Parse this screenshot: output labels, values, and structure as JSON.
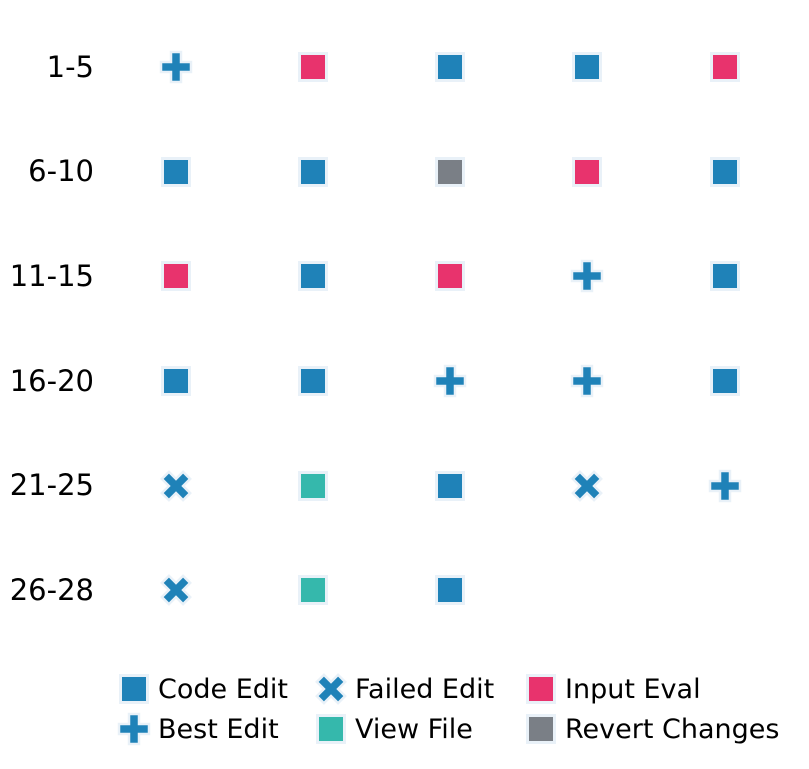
{
  "chart_data": {
    "type": "scatter",
    "title": "",
    "xlabel": "",
    "ylabel": "",
    "background": "#ffffff",
    "text_color": "#000000",
    "marker_edge_color": "#e9f1f8",
    "grid_on": false,
    "legend_position": "bottom",
    "row_labels": [
      "1-5",
      "6-10",
      "11-15",
      "16-20",
      "21-25",
      "26-28"
    ],
    "columns_per_row": 5,
    "legend": [
      {
        "key": "code_edit",
        "label": "Code Edit",
        "marker": "square",
        "color": "#1f82b8"
      },
      {
        "key": "failed_edit",
        "label": "Failed Edit",
        "marker": "x",
        "color": "#1f82b8"
      },
      {
        "key": "input_eval",
        "label": "Input Eval",
        "marker": "square",
        "color": "#e8336d"
      },
      {
        "key": "best_edit",
        "label": "Best Edit",
        "marker": "plus",
        "color": "#1f82b8"
      },
      {
        "key": "view_file",
        "label": "View File",
        "marker": "square",
        "color": "#35b8ac"
      },
      {
        "key": "revert_changes",
        "label": "Revert Changes",
        "marker": "square",
        "color": "#7a7f86"
      }
    ],
    "grid": [
      [
        "best_edit",
        "input_eval",
        "code_edit",
        "code_edit",
        "input_eval"
      ],
      [
        "code_edit",
        "code_edit",
        "revert_changes",
        "input_eval",
        "code_edit"
      ],
      [
        "input_eval",
        "code_edit",
        "input_eval",
        "best_edit",
        "code_edit"
      ],
      [
        "code_edit",
        "code_edit",
        "best_edit",
        "best_edit",
        "code_edit"
      ],
      [
        "failed_edit",
        "view_file",
        "code_edit",
        "failed_edit",
        "best_edit"
      ],
      [
        "failed_edit",
        "view_file",
        "code_edit",
        null,
        null
      ]
    ]
  }
}
